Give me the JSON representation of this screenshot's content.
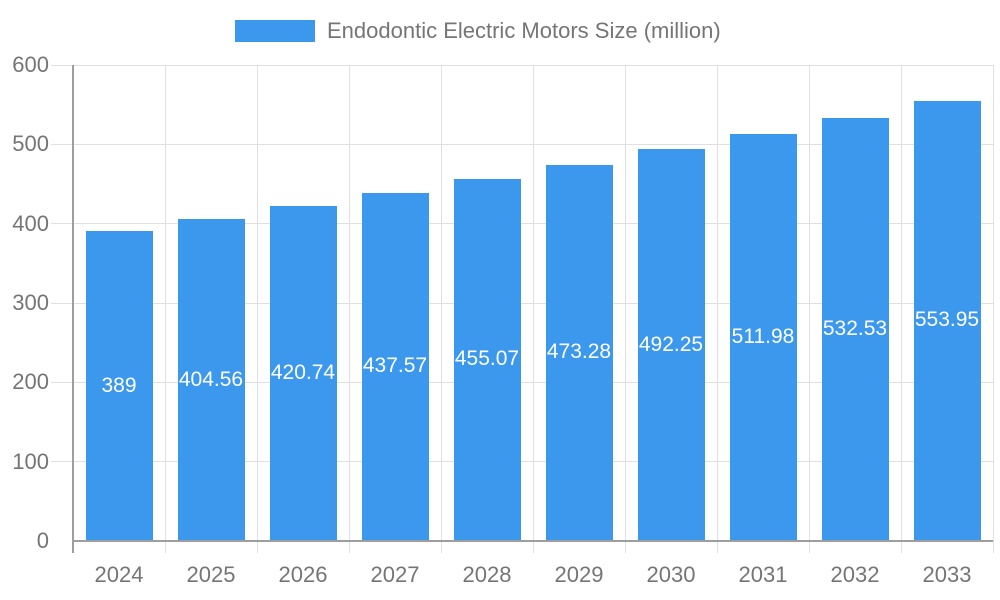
{
  "chart_data": {
    "type": "bar",
    "title": "Endodontic Electric Motors Size (million)",
    "categories": [
      "2024",
      "2025",
      "2026",
      "2027",
      "2028",
      "2029",
      "2030",
      "2031",
      "2032",
      "2033"
    ],
    "values": [
      389,
      404.56,
      420.74,
      437.57,
      455.07,
      473.28,
      492.25,
      511.98,
      532.53,
      553.95
    ],
    "value_labels": [
      "389",
      "404.56",
      "420.74",
      "437.57",
      "455.07",
      "473.28",
      "492.25",
      "511.98",
      "532.53",
      "553.95"
    ],
    "xlabel": "",
    "ylabel": "",
    "ylim": [
      0,
      600
    ],
    "y_ticks": [
      0,
      100,
      200,
      300,
      400,
      500,
      600
    ],
    "grid": true,
    "legend_position": "top",
    "colors": {
      "bar": "#3b98ec",
      "gridline": "#e0e0e0",
      "axis_line": "#9e9e9e",
      "tick_text": "#757575",
      "value_label_text": "#ffffff",
      "background": "#ffffff"
    }
  }
}
